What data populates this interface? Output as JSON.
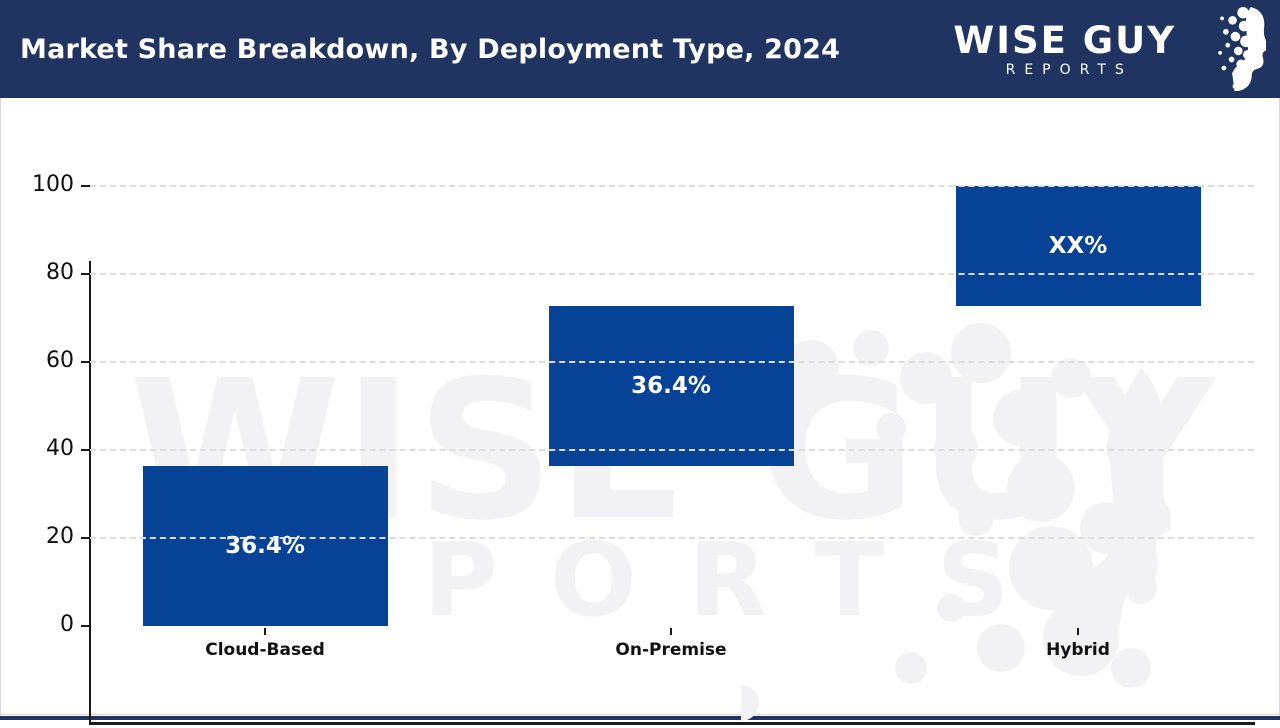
{
  "header": {
    "title": "Market Share Breakdown, By Deployment Type, 2024",
    "bg_color": "#1f3461",
    "logo_line1": "WISE GUY",
    "logo_line2": "REPORTS"
  },
  "watermark": {
    "line1": "WISE GUY",
    "line2": "REPORTS"
  },
  "chart_data": {
    "type": "bar",
    "subtype": "waterfall-stacked",
    "title": "Market Share Breakdown, By Deployment Type, 2024",
    "categories": [
      "Cloud-Based",
      "On-Premise",
      "Hybrid"
    ],
    "bars": [
      {
        "category": "Cloud-Based",
        "start": 0,
        "end": 36.4,
        "label": "36.4%"
      },
      {
        "category": "On-Premise",
        "start": 36.4,
        "end": 72.8,
        "label": "36.4%"
      },
      {
        "category": "Hybrid",
        "start": 72.8,
        "end": 100,
        "label": "XX%"
      }
    ],
    "ylim": [
      0,
      100
    ],
    "yticks": [
      0,
      20,
      40,
      60,
      80,
      100
    ],
    "xlabel": "",
    "ylabel": "",
    "legend": "none",
    "grid": {
      "axis": "y",
      "style": "dashed",
      "color": "#dcdcdc",
      "on_top": true
    },
    "bar_color": "#064296",
    "bar_label_color": "#ffffff",
    "axis_color": "#1a1a1a"
  }
}
